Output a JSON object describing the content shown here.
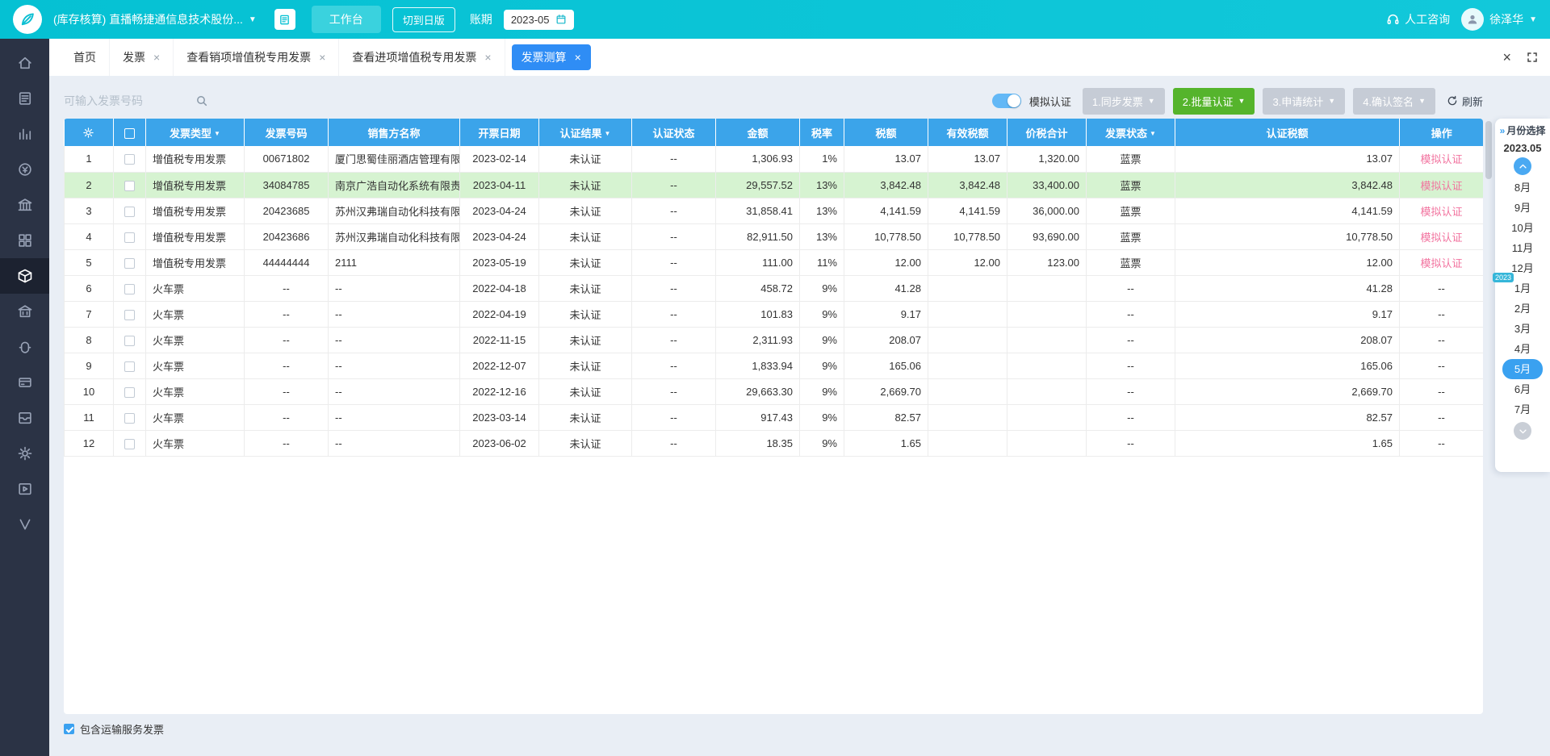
{
  "colors": {
    "accent1": "#05c1d3",
    "accent2": "#12c8da",
    "thead": "#3ba4ea",
    "tabActive": "#2f8df5",
    "green": "#55b42c",
    "greyBtn": "#c6ccd6",
    "hl": "#d6f3d1",
    "pink": "#f2739f",
    "blue": "#3aa1f0",
    "badge": "#35b6d9",
    "sidebar": "#2b3345",
    "sidebarActive": "#1c2230",
    "bg": "#e9eef5"
  },
  "topbar": {
    "company": "(库存核算) 直播畅捷通信息技术股份...",
    "workbench": "工作台",
    "switch_version": "切到日版",
    "period_label": "账期",
    "period_value": "2023-05",
    "support": "人工咨询",
    "user": "徐泽华"
  },
  "sidebar": {
    "items": [
      {
        "icon": "home-icon"
      },
      {
        "icon": "report-icon"
      },
      {
        "icon": "chart-icon"
      },
      {
        "icon": "fund-icon"
      },
      {
        "icon": "bank-icon"
      },
      {
        "icon": "modules-icon"
      },
      {
        "icon": "inventory-icon",
        "active": true
      },
      {
        "icon": "asset-icon"
      },
      {
        "icon": "service-icon"
      },
      {
        "icon": "checkout-icon"
      },
      {
        "icon": "drawer-icon"
      },
      {
        "icon": "settings-icon"
      },
      {
        "icon": "media-icon"
      },
      {
        "icon": "brand-v-icon"
      }
    ]
  },
  "tabs": [
    {
      "label": "首页",
      "closable": false,
      "active": false
    },
    {
      "label": "发票",
      "closable": true,
      "active": false
    },
    {
      "label": "查看销项增值税专用发票",
      "closable": true,
      "active": false
    },
    {
      "label": "查看进项增值税专用发票",
      "closable": true,
      "active": false
    },
    {
      "label": "发票测算",
      "closable": true,
      "active": true
    }
  ],
  "toolbar": {
    "search_placeholder": "可输入发票号码",
    "toggle_label": "模拟认证",
    "toggle_on": true,
    "buttons": [
      {
        "label": "1.同步发票",
        "variant": "grey"
      },
      {
        "label": "2.批量认证",
        "variant": "green"
      },
      {
        "label": "3.申请统计",
        "variant": "grey"
      },
      {
        "label": "4.确认签名",
        "variant": "grey"
      }
    ],
    "refresh": "刷新"
  },
  "table": {
    "columns": [
      {
        "label": "发票类型",
        "sortable": true
      },
      {
        "label": "发票号码"
      },
      {
        "label": "销售方名称"
      },
      {
        "label": "开票日期"
      },
      {
        "label": "认证结果",
        "sortable": true
      },
      {
        "label": "认证状态"
      },
      {
        "label": "金额"
      },
      {
        "label": "税率"
      },
      {
        "label": "税额"
      },
      {
        "label": "有效税额"
      },
      {
        "label": "价税合计"
      },
      {
        "label": "发票状态",
        "sortable": true
      },
      {
        "label": "认证税额"
      },
      {
        "label": "操作"
      }
    ],
    "rows": [
      {
        "index": "1",
        "type": "增值税专用发票",
        "number": "00671802",
        "seller": "厦门思蜀佳丽酒店管理有限...",
        "date": "2023-02-14",
        "result": "未认证",
        "status": "--",
        "amount": "1,306.93",
        "rate": "1%",
        "tax": "13.07",
        "valid_tax": "13.07",
        "total": "1,320.00",
        "inv_status": "蓝票",
        "auth_tax": "13.07",
        "action": "模拟认证"
      },
      {
        "index": "2",
        "highlighted": true,
        "type": "增值税专用发票",
        "number": "34084785",
        "seller": "南京广浩自动化系统有限责...",
        "date": "2023-04-11",
        "result": "未认证",
        "status": "--",
        "amount": "29,557.52",
        "rate": "13%",
        "tax": "3,842.48",
        "valid_tax": "3,842.48",
        "total": "33,400.00",
        "inv_status": "蓝票",
        "auth_tax": "3,842.48",
        "action": "模拟认证"
      },
      {
        "index": "3",
        "type": "增值税专用发票",
        "number": "20423685",
        "seller": "苏州汉弗瑞自动化科技有限...",
        "date": "2023-04-24",
        "result": "未认证",
        "status": "--",
        "amount": "31,858.41",
        "rate": "13%",
        "tax": "4,141.59",
        "valid_tax": "4,141.59",
        "total": "36,000.00",
        "inv_status": "蓝票",
        "auth_tax": "4,141.59",
        "action": "模拟认证"
      },
      {
        "index": "4",
        "type": "增值税专用发票",
        "number": "20423686",
        "seller": "苏州汉弗瑞自动化科技有限...",
        "date": "2023-04-24",
        "result": "未认证",
        "status": "--",
        "amount": "82,911.50",
        "rate": "13%",
        "tax": "10,778.50",
        "valid_tax": "10,778.50",
        "total": "93,690.00",
        "inv_status": "蓝票",
        "auth_tax": "10,778.50",
        "action": "模拟认证"
      },
      {
        "index": "5",
        "type": "增值税专用发票",
        "number": "44444444",
        "seller": "2111",
        "date": "2023-05-19",
        "result": "未认证",
        "status": "--",
        "amount": "111.00",
        "rate": "11%",
        "tax": "12.00",
        "valid_tax": "12.00",
        "total": "123.00",
        "inv_status": "蓝票",
        "auth_tax": "12.00",
        "action": "模拟认证"
      },
      {
        "index": "6",
        "type": "火车票",
        "number": "--",
        "seller": "--",
        "date": "2022-04-18",
        "result": "未认证",
        "status": "--",
        "amount": "458.72",
        "rate": "9%",
        "tax": "41.28",
        "valid_tax": "",
        "total": "",
        "inv_status": "--",
        "auth_tax": "41.28",
        "action": "--"
      },
      {
        "index": "7",
        "type": "火车票",
        "number": "--",
        "seller": "--",
        "date": "2022-04-19",
        "result": "未认证",
        "status": "--",
        "amount": "101.83",
        "rate": "9%",
        "tax": "9.17",
        "valid_tax": "",
        "total": "",
        "inv_status": "--",
        "auth_tax": "9.17",
        "action": "--"
      },
      {
        "index": "8",
        "type": "火车票",
        "number": "--",
        "seller": "--",
        "date": "2022-11-15",
        "result": "未认证",
        "status": "--",
        "amount": "2,311.93",
        "rate": "9%",
        "tax": "208.07",
        "valid_tax": "",
        "total": "",
        "inv_status": "--",
        "auth_tax": "208.07",
        "action": "--"
      },
      {
        "index": "9",
        "type": "火车票",
        "number": "--",
        "seller": "--",
        "date": "2022-12-07",
        "result": "未认证",
        "status": "--",
        "amount": "1,833.94",
        "rate": "9%",
        "tax": "165.06",
        "valid_tax": "",
        "total": "",
        "inv_status": "--",
        "auth_tax": "165.06",
        "action": "--"
      },
      {
        "index": "10",
        "type": "火车票",
        "number": "--",
        "seller": "--",
        "date": "2022-12-16",
        "result": "未认证",
        "status": "--",
        "amount": "29,663.30",
        "rate": "9%",
        "tax": "2,669.70",
        "valid_tax": "",
        "total": "",
        "inv_status": "--",
        "auth_tax": "2,669.70",
        "action": "--"
      },
      {
        "index": "11",
        "type": "火车票",
        "number": "--",
        "seller": "--",
        "date": "2023-03-14",
        "result": "未认证",
        "status": "--",
        "amount": "917.43",
        "rate": "9%",
        "tax": "82.57",
        "valid_tax": "",
        "total": "",
        "inv_status": "--",
        "auth_tax": "82.57",
        "action": "--"
      },
      {
        "index": "12",
        "type": "火车票",
        "number": "--",
        "seller": "--",
        "date": "2023-06-02",
        "result": "未认证",
        "status": "--",
        "amount": "18.35",
        "rate": "9%",
        "tax": "1.65",
        "valid_tax": "",
        "total": "",
        "inv_status": "--",
        "auth_tax": "1.65",
        "action": "--"
      }
    ]
  },
  "footer": {
    "checkbox_label": "包含运输服务发票",
    "checked": true
  },
  "month_panel": {
    "title": "月份选择",
    "current": "2023.05",
    "year_badge": "2023",
    "months": [
      {
        "label": "8月"
      },
      {
        "label": "9月"
      },
      {
        "label": "10月"
      },
      {
        "label": "11月"
      },
      {
        "label": "12月"
      },
      {
        "label": "1月"
      },
      {
        "label": "2月"
      },
      {
        "label": "3月"
      },
      {
        "label": "4月"
      },
      {
        "label": "5月",
        "selected": true
      },
      {
        "label": "6月"
      },
      {
        "label": "7月"
      }
    ]
  }
}
